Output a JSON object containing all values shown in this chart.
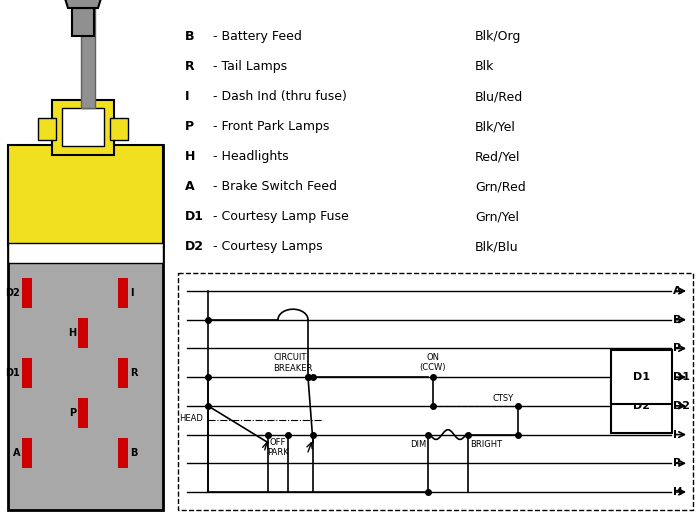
{
  "bg_color": "#ffffff",
  "legend_entries": [
    {
      "letter": "B",
      "desc": "- Battery Feed",
      "wire": "Blk/Org"
    },
    {
      "letter": "R",
      "desc": "- Tail Lamps",
      "wire": "Blk"
    },
    {
      "letter": "I",
      "desc": "- Dash Ind (thru fuse)",
      "wire": "Blu/Red"
    },
    {
      "letter": "P",
      "desc": "- Front Park Lamps",
      "wire": "Blk/Yel"
    },
    {
      "letter": "H",
      "desc": "- Headlights",
      "wire": "Red/Yel"
    },
    {
      "letter": "A",
      "desc": "- Brake Switch Feed",
      "wire": "Grn/Red"
    },
    {
      "letter": "D1",
      "desc": "- Courtesy Lamp Fuse",
      "wire": "Grn/Yel"
    },
    {
      "letter": "D2",
      "desc": "- Courtesy Lamps",
      "wire": "Blk/Blu"
    }
  ],
  "pins": [
    {
      "label": "D2",
      "col": 0,
      "row": 0
    },
    {
      "label": "I",
      "col": 1,
      "row": 0
    },
    {
      "label": "H",
      "col": 2,
      "row": 1
    },
    {
      "label": "D1",
      "col": 0,
      "row": 2
    },
    {
      "label": "R",
      "col": 1,
      "row": 2
    },
    {
      "label": "P",
      "col": 2,
      "row": 3
    },
    {
      "label": "A",
      "col": 0,
      "row": 4
    },
    {
      "label": "B",
      "col": 1,
      "row": 4
    }
  ],
  "switch_gray": "#b0b0b0",
  "yellow_color": "#f0e020",
  "red_color": "#cc0000",
  "dark_color": "#000000",
  "shaft_gray": "#909090",
  "body_gray": "#a8a8a8"
}
